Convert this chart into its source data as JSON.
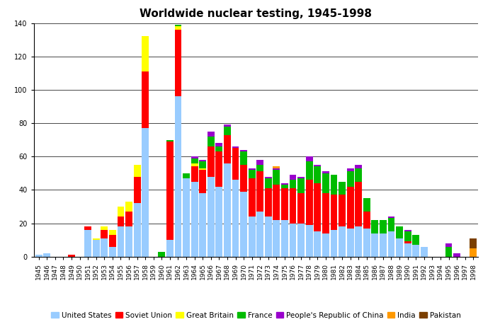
{
  "title": "Worldwide nuclear testing, 1945-1998",
  "years": [
    1945,
    1946,
    1947,
    1948,
    1949,
    1950,
    1951,
    1952,
    1953,
    1954,
    1955,
    1956,
    1957,
    1958,
    1959,
    1960,
    1961,
    1962,
    1963,
    1964,
    1965,
    1966,
    1967,
    1968,
    1969,
    1970,
    1971,
    1972,
    1973,
    1974,
    1975,
    1976,
    1977,
    1978,
    1979,
    1980,
    1981,
    1982,
    1983,
    1984,
    1985,
    1986,
    1987,
    1988,
    1989,
    1990,
    1991,
    1992,
    1993,
    1994,
    1995,
    1996,
    1997,
    1998
  ],
  "series": {
    "United States": [
      1,
      2,
      0,
      0,
      0,
      0,
      16,
      10,
      11,
      6,
      18,
      18,
      32,
      77,
      0,
      0,
      10,
      96,
      47,
      45,
      38,
      48,
      42,
      56,
      46,
      39,
      24,
      27,
      24,
      22,
      22,
      20,
      20,
      19,
      15,
      14,
      16,
      18,
      17,
      18,
      17,
      14,
      14,
      15,
      11,
      8,
      7,
      6,
      0,
      0,
      0,
      0,
      0,
      0
    ],
    "Soviet Union": [
      0,
      0,
      0,
      0,
      1,
      0,
      2,
      0,
      5,
      7,
      6,
      9,
      16,
      34,
      0,
      0,
      59,
      40,
      0,
      9,
      14,
      18,
      21,
      17,
      19,
      16,
      23,
      24,
      17,
      21,
      19,
      21,
      18,
      27,
      29,
      24,
      21,
      19,
      25,
      27,
      10,
      0,
      0,
      0,
      0,
      1,
      0,
      0,
      0,
      0,
      0,
      0,
      0,
      0
    ],
    "Great Britain": [
      0,
      0,
      0,
      0,
      0,
      0,
      0,
      1,
      2,
      3,
      6,
      6,
      7,
      21,
      0,
      0,
      0,
      2,
      0,
      2,
      1,
      0,
      0,
      0,
      0,
      0,
      0,
      0,
      0,
      0,
      0,
      0,
      0,
      0,
      0,
      0,
      0,
      0,
      0,
      0,
      0,
      0,
      0,
      0,
      0,
      0,
      0,
      0,
      0,
      0,
      0,
      0,
      0,
      0
    ],
    "France": [
      0,
      0,
      0,
      0,
      0,
      0,
      0,
      0,
      0,
      0,
      0,
      0,
      0,
      0,
      0,
      3,
      1,
      1,
      3,
      3,
      4,
      6,
      3,
      5,
      0,
      8,
      5,
      4,
      6,
      9,
      2,
      5,
      9,
      11,
      10,
      12,
      12,
      8,
      9,
      8,
      8,
      8,
      8,
      8,
      7,
      6,
      6,
      0,
      0,
      0,
      6,
      0,
      0,
      0
    ],
    "People's Republic of China": [
      0,
      0,
      0,
      0,
      0,
      0,
      0,
      0,
      0,
      0,
      0,
      0,
      0,
      0,
      0,
      0,
      0,
      0,
      0,
      1,
      1,
      3,
      2,
      1,
      1,
      1,
      1,
      3,
      1,
      1,
      1,
      3,
      1,
      3,
      1,
      1,
      0,
      0,
      2,
      2,
      0,
      0,
      0,
      1,
      0,
      1,
      0,
      0,
      0,
      0,
      2,
      2,
      0,
      0
    ],
    "India": [
      0,
      0,
      0,
      0,
      0,
      0,
      0,
      0,
      0,
      0,
      0,
      0,
      0,
      0,
      0,
      0,
      0,
      0,
      0,
      0,
      0,
      0,
      0,
      0,
      0,
      0,
      0,
      0,
      0,
      1,
      0,
      0,
      0,
      0,
      0,
      0,
      0,
      0,
      0,
      0,
      0,
      0,
      0,
      0,
      0,
      0,
      0,
      0,
      0,
      0,
      0,
      0,
      0,
      5
    ],
    "Pakistan": [
      0,
      0,
      0,
      0,
      0,
      0,
      0,
      0,
      0,
      0,
      0,
      0,
      0,
      0,
      0,
      0,
      0,
      0,
      0,
      0,
      0,
      0,
      0,
      0,
      0,
      0,
      0,
      0,
      0,
      0,
      0,
      0,
      0,
      0,
      0,
      0,
      0,
      0,
      0,
      0,
      0,
      0,
      0,
      0,
      0,
      0,
      0,
      0,
      0,
      0,
      0,
      0,
      0,
      6
    ]
  },
  "colors": {
    "United States": "#99CCFF",
    "Soviet Union": "#FF0000",
    "Great Britain": "#FFFF00",
    "France": "#00BB00",
    "People's Republic of China": "#9900CC",
    "India": "#FF9900",
    "Pakistan": "#7B3F00"
  },
  "ylim": [
    0,
    140
  ],
  "yticks": [
    0,
    20,
    40,
    60,
    80,
    100,
    120,
    140
  ],
  "bgcolor": "#FFFFFF",
  "grid_color": "#000000",
  "bar_width": 0.85,
  "figsize": [
    6.82,
    4.65
  ],
  "dpi": 100,
  "title_fontsize": 11,
  "tick_fontsize": 6.5,
  "legend_fontsize": 7.5
}
